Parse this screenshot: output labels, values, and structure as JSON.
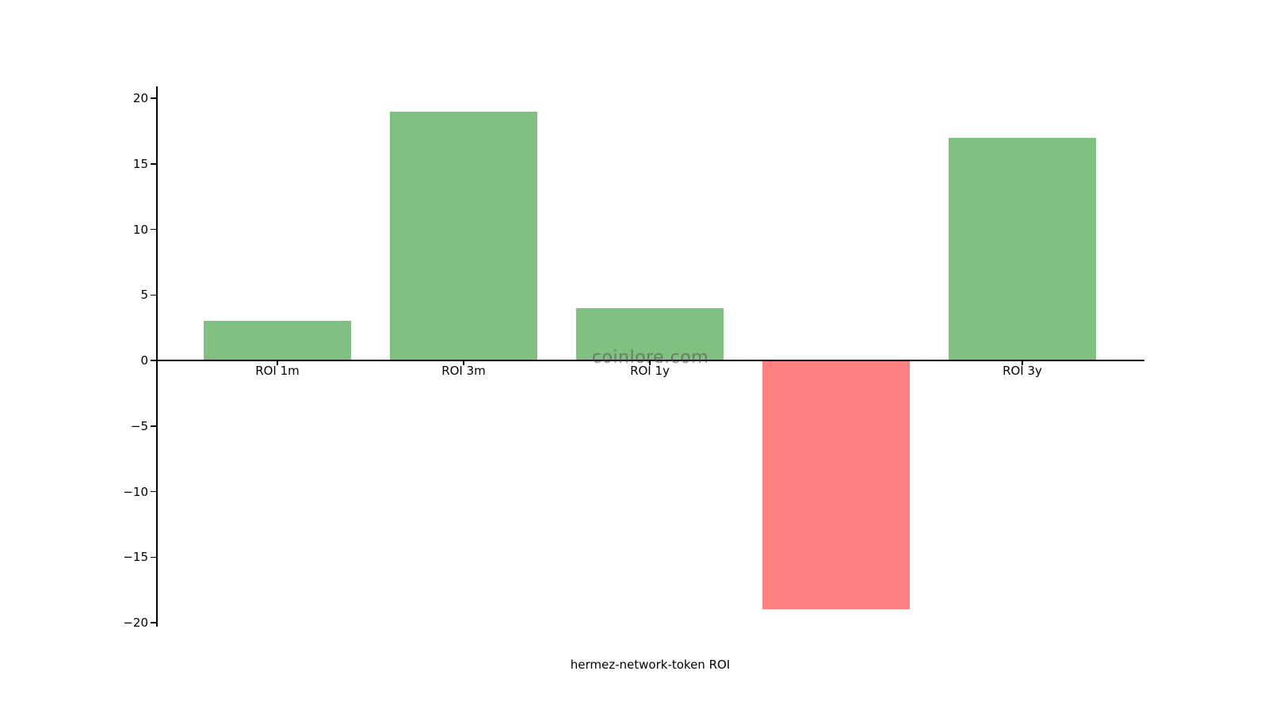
{
  "page": {
    "background": "#ffffff"
  },
  "watermark": {
    "text": "coinlore.com",
    "color": "#555555"
  },
  "chart_data": {
    "type": "bar",
    "categories": [
      "ROI 1m",
      "ROI 3m",
      "ROI 1y",
      "",
      "ROI 3y"
    ],
    "values": [
      3,
      19,
      4,
      -19,
      17
    ],
    "bar_colors": [
      "#80c080",
      "#80c080",
      "#80c080",
      "#ff8080",
      "#80c080"
    ],
    "positive_color": "#80c080",
    "negative_color": "#ff8080",
    "title": "hermez-network-token ROI",
    "xlabel": "hermez-network-token ROI",
    "ylabel": "",
    "ylim": [
      -20,
      20
    ],
    "yticks": [
      20,
      15,
      10,
      5,
      0,
      -5,
      -10,
      -15,
      -20
    ],
    "ytick_labels": [
      "20",
      "15",
      "10",
      "5",
      "0",
      "−5",
      "−10",
      "−15",
      "−20"
    ],
    "grid": false,
    "legend": false,
    "axis_color": "#000000",
    "watermark": "coinlore.com"
  }
}
